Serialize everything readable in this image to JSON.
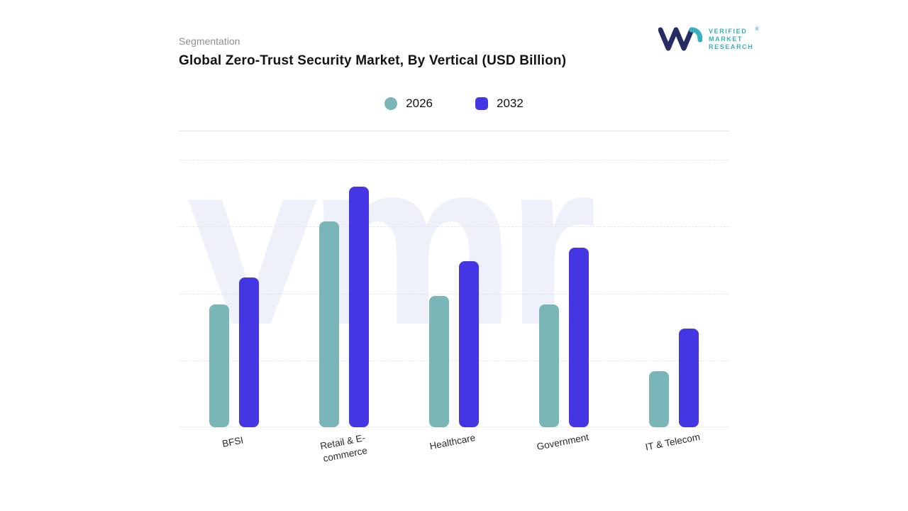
{
  "header": {
    "eyebrow": "Segmentation",
    "title": "Global Zero-Trust Security Market, By Vertical (USD Billion)"
  },
  "logo": {
    "lines": [
      "VERIFIED",
      "MARKET",
      "RESEARCH"
    ],
    "registered": "®",
    "brand_dark": "#262D63",
    "brand_teal": "#38AFBC"
  },
  "legend": [
    {
      "label": "2026",
      "color": "#7AB5B8",
      "shape": "circle"
    },
    {
      "label": "2032",
      "color": "#4536E4",
      "shape": "square"
    }
  ],
  "watermark": "vmr",
  "chart_data": {
    "type": "bar",
    "title": "Global Zero-Trust Security Market, By Vertical (USD Billion)",
    "categories": [
      "BFSI",
      "Retail & E-commerce",
      "Healthcare",
      "Government",
      "IT & Telecom"
    ],
    "series": [
      {
        "name": "2026",
        "color": "#7AB5B8",
        "values": [
          46,
          77,
          49,
          46,
          21
        ]
      },
      {
        "name": "2032",
        "color": "#4536E4",
        "values": [
          56,
          90,
          62,
          67,
          37
        ]
      }
    ],
    "xlabel": "",
    "ylabel": "",
    "ylim": [
      0,
      100
    ],
    "value_axis_labels_visible": false,
    "grid": "dashed-horizontal",
    "legend_position": "top-center",
    "units": "USD Billion (relative, unlabeled axis)"
  }
}
